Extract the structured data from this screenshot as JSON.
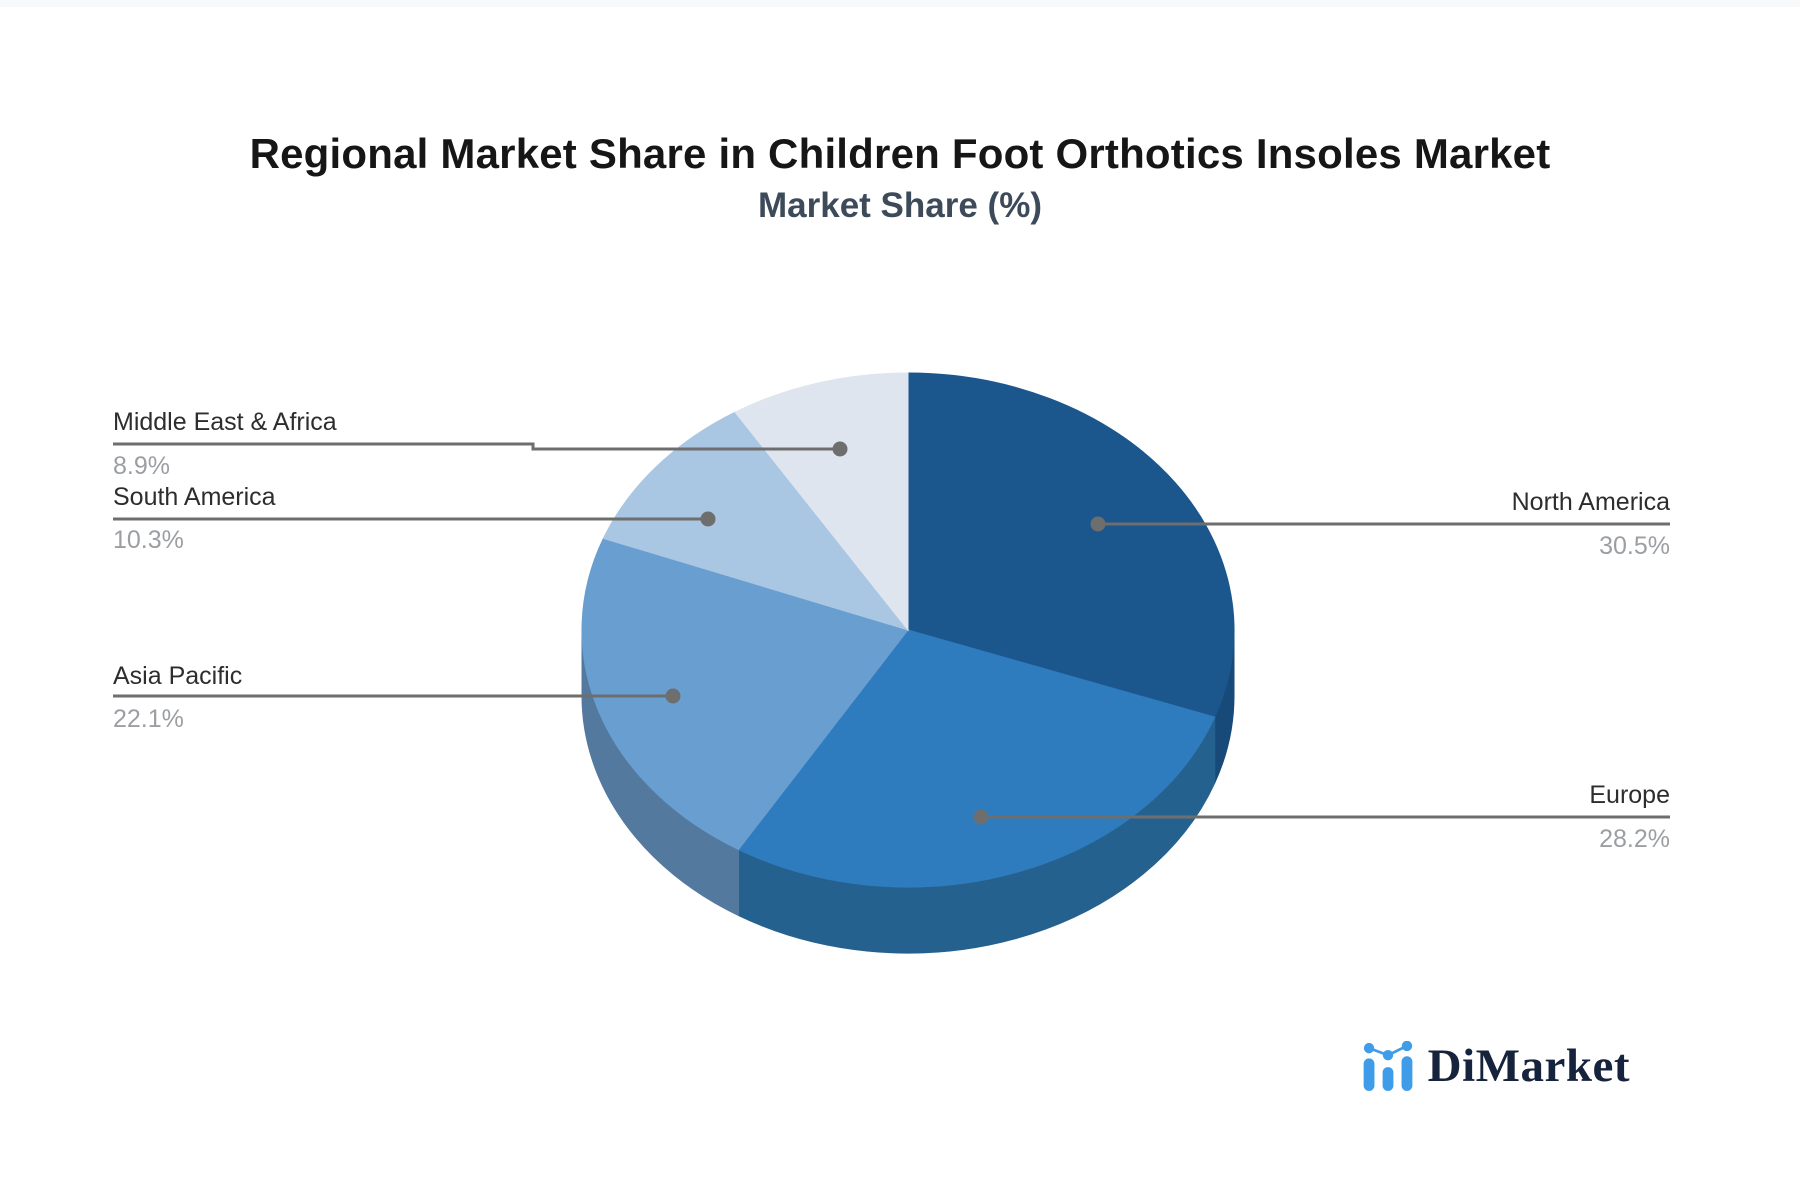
{
  "page": {
    "background": "#ffffff",
    "top_strip_color": "#f8f9fb"
  },
  "chart_data": {
    "type": "pie",
    "title": "Regional Market Share in Children Foot Orthotics Insoles Market",
    "subtitle": "Market Share (%)",
    "unit": "%",
    "effect": "3d",
    "start_angle_deg": 0,
    "direction": "clockwise",
    "legend_position": "none",
    "slices": [
      {
        "label": "North America",
        "value": 30.5,
        "pct_label": "30.5%",
        "color": "#1b568d",
        "rim_color": "#174a79",
        "label_side": "right"
      },
      {
        "label": "Europe",
        "value": 28.2,
        "pct_label": "28.2%",
        "color": "#2e7cbe",
        "rim_color": "#25618f",
        "label_side": "right"
      },
      {
        "label": "Asia Pacific",
        "value": 22.1,
        "pct_label": "22.1%",
        "color": "#699ed1",
        "rim_color": "#54799f",
        "label_side": "left"
      },
      {
        "label": "South America",
        "value": 10.3,
        "pct_label": "10.3%",
        "color": "#a9c6e2",
        "rim_color": "#8aa6c2",
        "label_side": "left"
      },
      {
        "label": "Middle East & Africa",
        "value": 8.9,
        "pct_label": "8.9%",
        "color": "#dfe5ef",
        "rim_color": "#b9c4d4",
        "label_side": "left"
      }
    ],
    "leader_line_color": "#6e6e6e",
    "title_color": "#161616",
    "subtitle_color": "#3d4a59",
    "label_color": "#2d2d2d",
    "value_color": "#9b9fa3"
  },
  "brand": {
    "name": "DiMarket",
    "text_color": "#16233c",
    "icon_color": "#3f9ce8",
    "icon": "bar-line-chart-icon"
  }
}
